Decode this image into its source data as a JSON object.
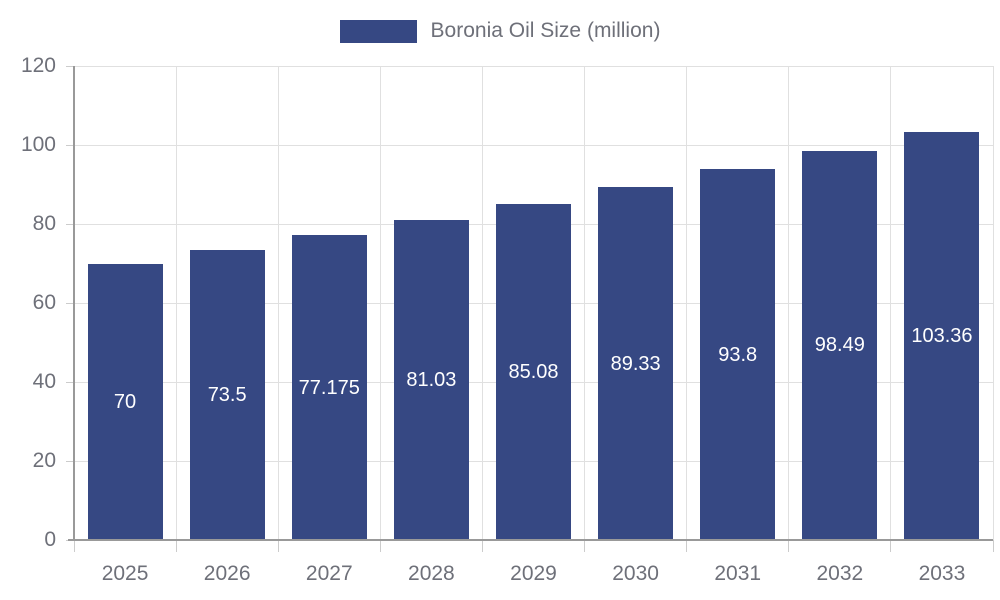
{
  "legend": {
    "label": "Boronia Oil Size (million)"
  },
  "colors": {
    "bar": "#364883",
    "grid_line": "#e0e0e0",
    "axis_line": "#999999",
    "tick_line": "#cccccc",
    "axis_text": "#6e7079",
    "value_text": "#ffffff",
    "background": "#ffffff"
  },
  "chart_data": {
    "type": "bar",
    "title": "",
    "xlabel": "",
    "ylabel": "",
    "categories": [
      "2025",
      "2026",
      "2027",
      "2028",
      "2029",
      "2030",
      "2031",
      "2032",
      "2033"
    ],
    "series": [
      {
        "name": "Boronia Oil Size (million)",
        "values": [
          70,
          73.5,
          77.175,
          81.03,
          85.08,
          89.33,
          93.8,
          98.49,
          103.36
        ]
      }
    ],
    "value_labels": [
      "70",
      "73.5",
      "77.175",
      "81.03",
      "85.08",
      "89.33",
      "93.8",
      "98.49",
      "103.36"
    ],
    "ylim": [
      0,
      120
    ],
    "yticks": [
      0,
      20,
      40,
      60,
      80,
      100,
      120
    ],
    "grid": true,
    "legend_position": "top"
  }
}
